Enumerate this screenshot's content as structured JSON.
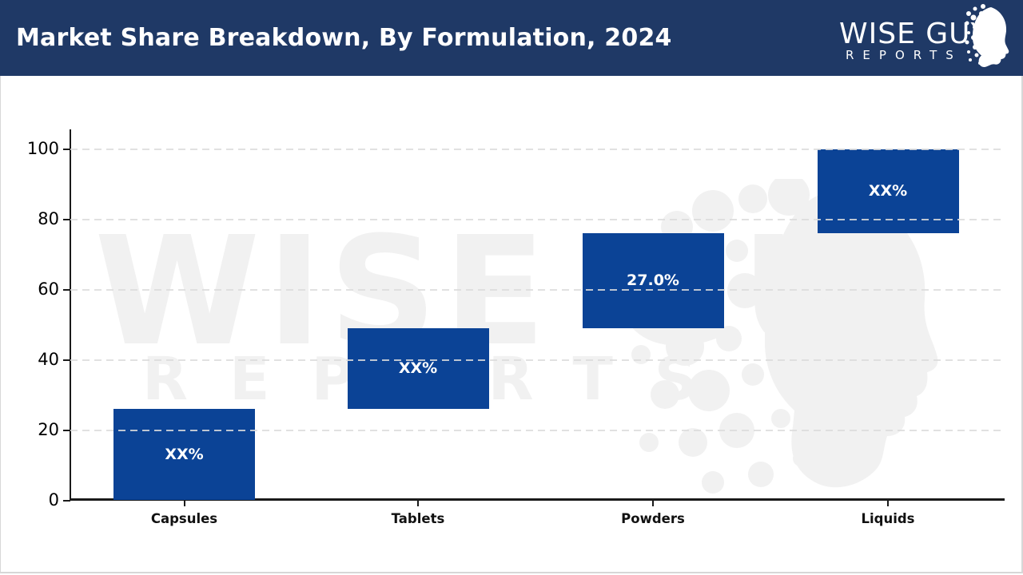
{
  "header": {
    "title": "Market Share Breakdown, By Formulation, 2024",
    "logo": {
      "name": "WISE GUY",
      "tagline": "REPORTS"
    }
  },
  "watermark": {
    "line1": "WISE GU",
    "line2": "REPORTS"
  },
  "colors": {
    "header_bg": "#1f3966",
    "bar_blue": "#0b4396",
    "watermark_gray": "#f1f1f1",
    "grid_gray": "#dcdcdc"
  },
  "chart_data": {
    "type": "bar",
    "variant": "floating-waterfall",
    "title": "Market Share Breakdown, By Formulation, 2024",
    "categories": [
      "Capsules",
      "Tablets",
      "Powders",
      "Liquids"
    ],
    "segments": [
      {
        "category": "Capsules",
        "start": 0,
        "end": 26,
        "label": "XX%"
      },
      {
        "category": "Tablets",
        "start": 26,
        "end": 49,
        "label": "XX%"
      },
      {
        "category": "Powders",
        "start": 49,
        "end": 76,
        "label": "27.0%"
      },
      {
        "category": "Liquids",
        "start": 76,
        "end": 100,
        "label": "XX%"
      }
    ],
    "values": [
      26,
      23,
      27,
      24
    ],
    "xlabel": "",
    "ylabel": "",
    "ylim": [
      0,
      100
    ],
    "yticks": [
      0,
      20,
      40,
      60,
      80,
      100
    ],
    "grid": "horizontal-dashed",
    "legend": "none",
    "bar_color": "#0b4396"
  }
}
